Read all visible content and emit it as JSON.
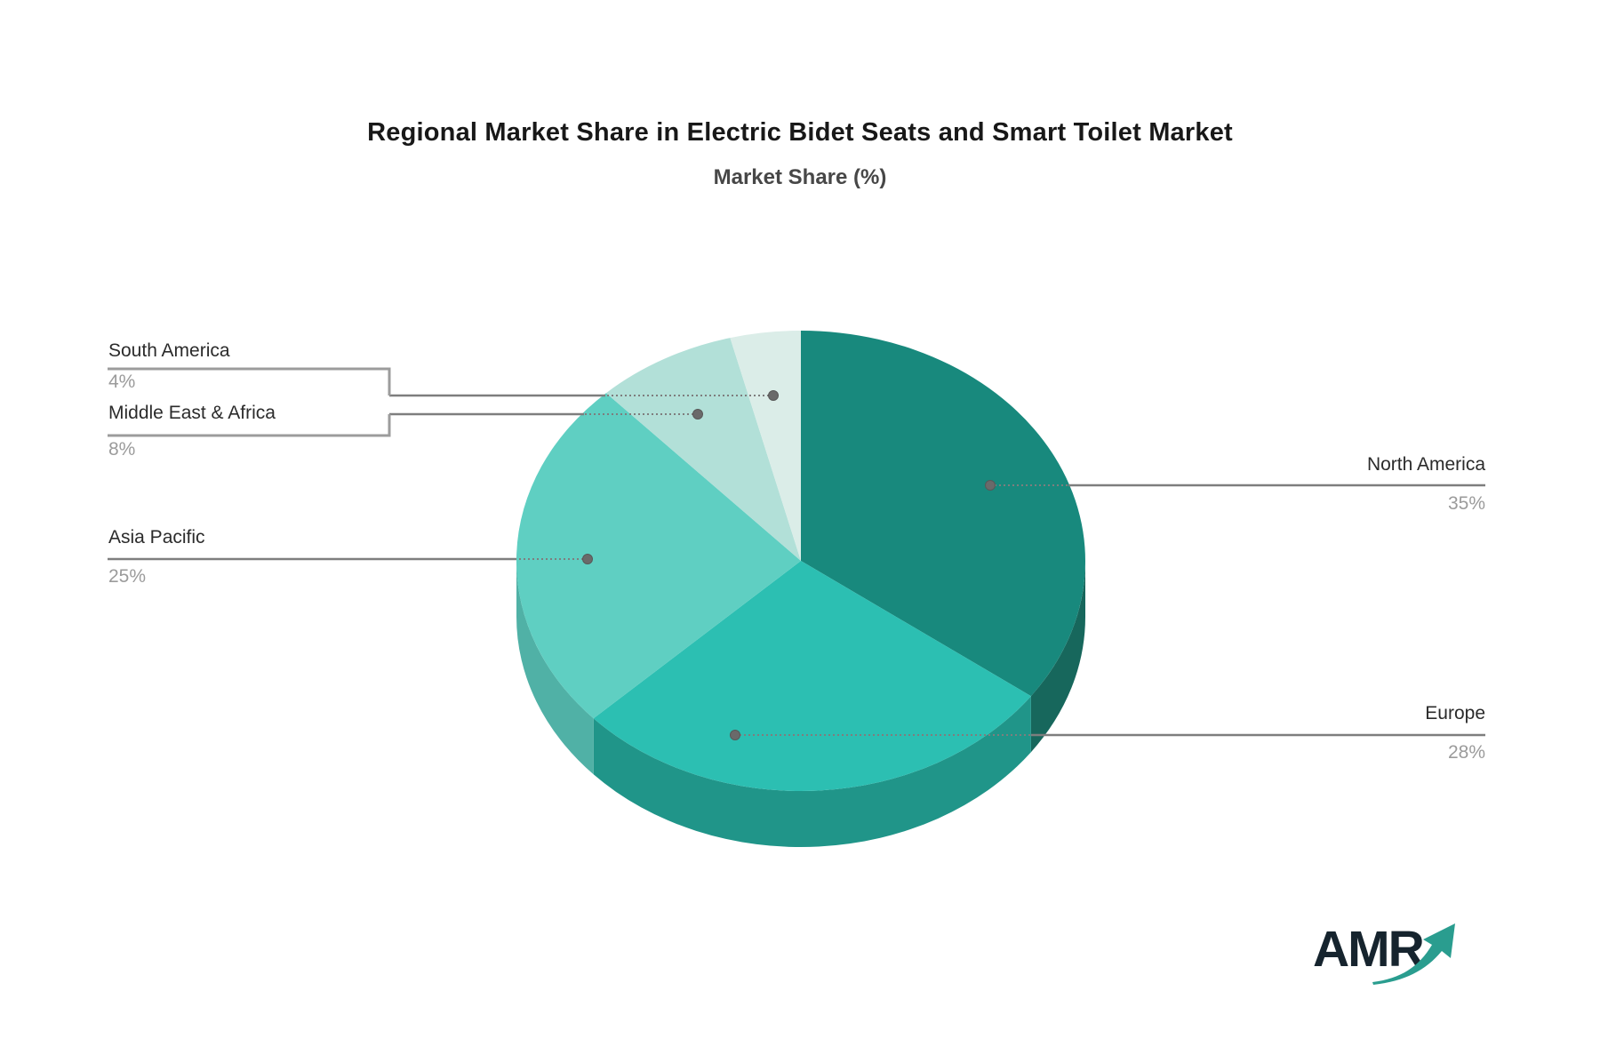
{
  "header": {
    "title": "Regional Market Share in Electric Bidet Seats and Smart Toilet Market",
    "subtitle": "Market Share (%)"
  },
  "logo": {
    "text": "AMR"
  },
  "chart_data": {
    "type": "pie",
    "is_3d": true,
    "title": "Regional Market Share in Electric Bidet Seats and Smart Toilet Market",
    "subtitle": "Market Share (%)",
    "unit": "%",
    "start_angle_deg": 0,
    "direction": "clockwise",
    "legend_position": "none",
    "categories": [
      "North America",
      "Europe",
      "Asia Pacific",
      "Middle East & Africa",
      "South America"
    ],
    "values": [
      35,
      28,
      25,
      8,
      4
    ],
    "slices": [
      {
        "name": "North America",
        "value": 35,
        "pct_label": "35%",
        "color": "#18897D",
        "side_color": "#17675C"
      },
      {
        "name": "Europe",
        "value": 28,
        "pct_label": "28%",
        "color": "#2CBFB2",
        "side_color": "#209589"
      },
      {
        "name": "Asia Pacific",
        "value": 25,
        "pct_label": "25%",
        "color": "#5FCFC2",
        "side_color": "#50B1A6"
      },
      {
        "name": "Middle East & Africa",
        "value": 8,
        "pct_label": "8%",
        "color": "#B2E0D8",
        "side_color": "#9CCFC6"
      },
      {
        "name": "South America",
        "value": 4,
        "pct_label": "4%",
        "color": "#DBEDE8",
        "side_color": "#C6DFDA"
      }
    ],
    "styles": {
      "leader_line_color": "#7e7e7e",
      "underline_color": "#9c9c9c",
      "dot_color": "#6a6a6a",
      "label_text_color": "#2b2b2b",
      "pct_text_color": "#9b9b9b",
      "logo_arrow_color": "#2a9d8f"
    }
  }
}
